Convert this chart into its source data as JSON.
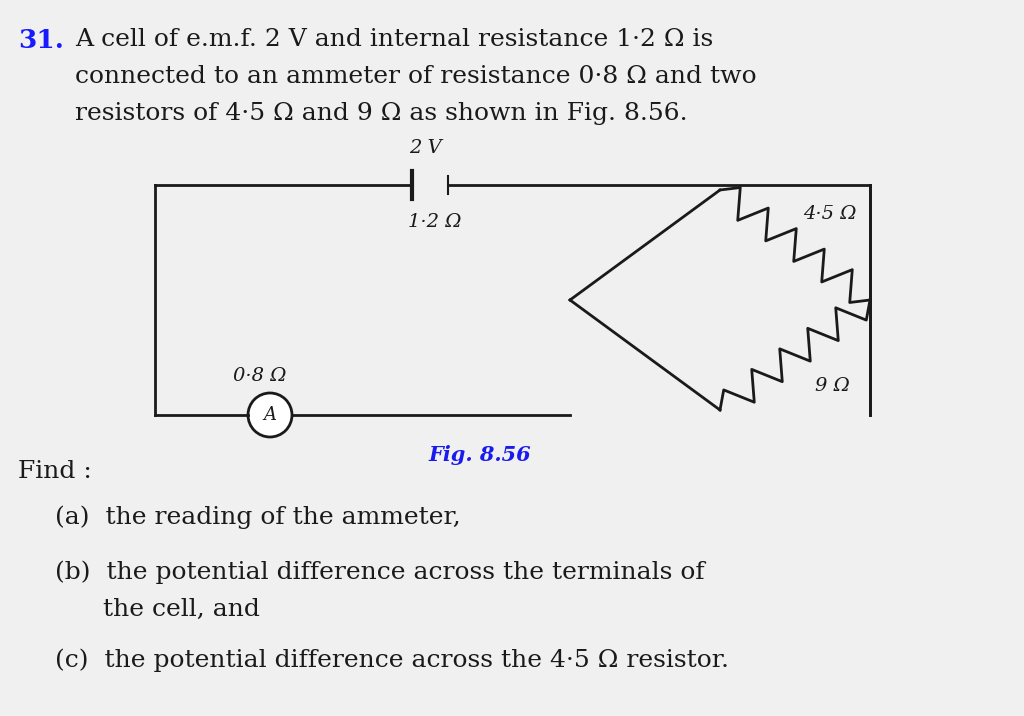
{
  "background_color": "#f0f0f0",
  "question_number": "31.",
  "question_text_line1": "A cell of e.m.f. 2 V and internal resistance 1·2 Ω is",
  "question_text_line2": "connected to an ammeter of resistance 0·8 Ω and two",
  "question_text_line3": "resistors of 4·5 Ω and 9 Ω as shown in Fig. 8.56.",
  "fig_label": "Fig. 8.56",
  "find_text": "Find :",
  "part_a": "(a)  the reading of the ammeter,",
  "part_b_line1": "(b)  the potential difference across the terminals of",
  "part_b_line2": "      the cell, and",
  "part_c": "(c)  the potential difference across the 4·5 Ω resistor.",
  "emf_label": "2 V",
  "internal_resistance_label": "1·2 Ω",
  "ammeter_label": "0·8 Ω",
  "ammeter_symbol": "A",
  "r1_label": "4·5 Ω",
  "r2_label": "9 Ω",
  "text_color": "#1a1a1a",
  "circuit_color": "#1a1a1a",
  "question_num_color": "#1a1aff"
}
